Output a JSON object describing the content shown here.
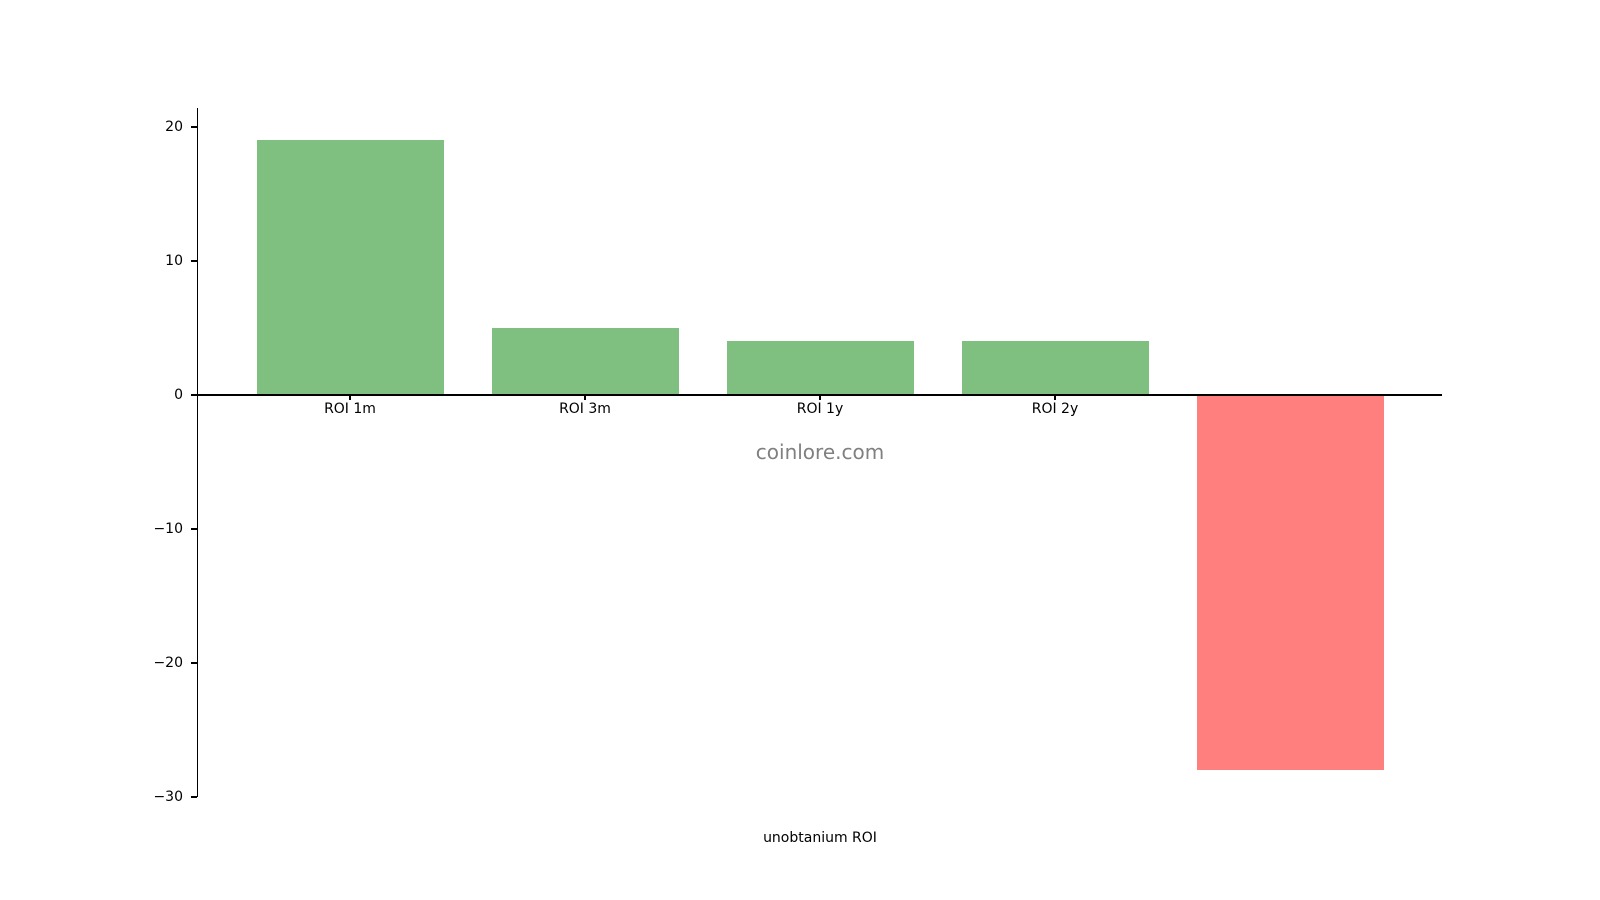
{
  "page": {
    "background_color": "#ffffff"
  },
  "watermark": {
    "text": "coinlore.com",
    "color": "#808080"
  },
  "chart_data": {
    "type": "bar",
    "title": "",
    "xlabel": "unobtanium ROI",
    "ylabel": "",
    "categories": [
      "ROI 1m",
      "ROI 3m",
      "ROI 1y",
      "ROI 2y",
      ""
    ],
    "values": [
      19,
      5,
      4,
      4,
      -28
    ],
    "bar_colors": [
      "#7fbf7f",
      "#7fbf7f",
      "#7fbf7f",
      "#7fbf7f",
      "#ff7f7f"
    ],
    "positive_color": "#7fbf7f",
    "negative_color": "#ff7f7f",
    "y_ticks": [
      20,
      10,
      0,
      -10,
      -20,
      -30
    ],
    "y_tick_labels": [
      "20",
      "10",
      "0",
      "−10",
      "−20",
      "−30"
    ],
    "ylim": [
      -30,
      21.4
    ],
    "grid": false,
    "legend": null,
    "axis_color": "#000000",
    "tick_label_color": "#000000"
  }
}
